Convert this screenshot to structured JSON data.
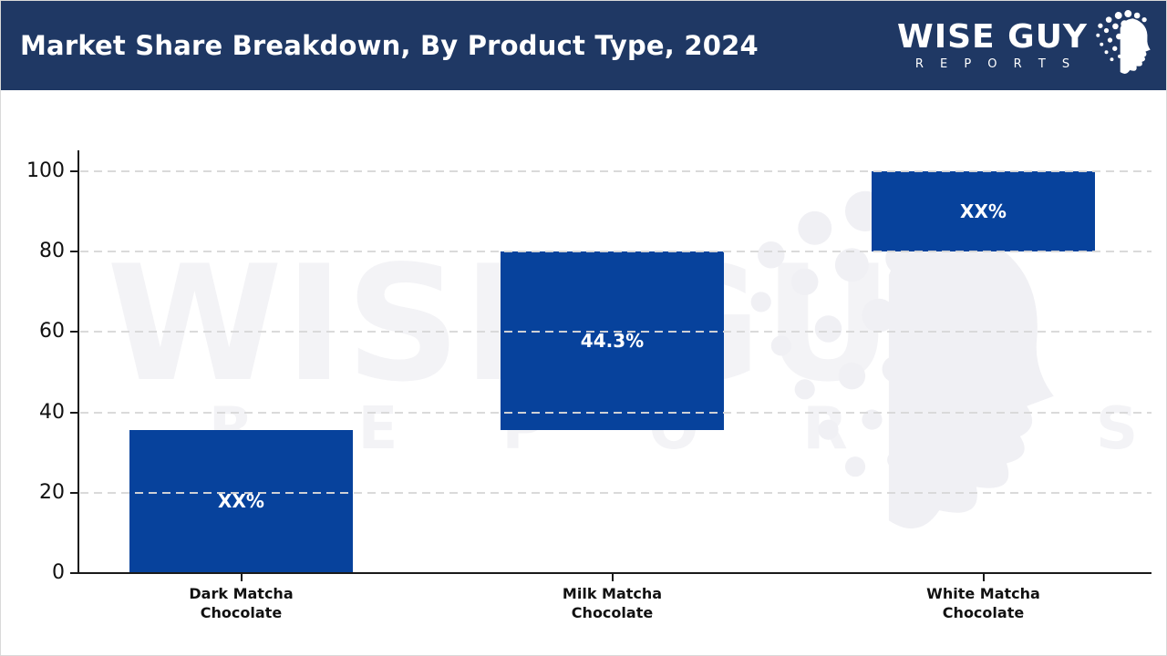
{
  "header": {
    "title": "Market Share Breakdown, By Product Type, 2024",
    "logo": {
      "wordmark": "WISE GUY",
      "subtext": "R E P O R T S"
    }
  },
  "watermark": {
    "wordmark": "WISE GUY",
    "subtext": "R E P O R T S"
  },
  "colors": {
    "header_bg": "#1f3864",
    "bar": "#07429c",
    "grid": "#d8d8d8",
    "axis": "#1a1a1a",
    "bar_label_text": "#ffffff",
    "watermark": "#f3f3f6"
  },
  "chart_data": {
    "type": "bar",
    "variant": "floating-waterfall",
    "title": "Market Share Breakdown, By Product Type, 2024",
    "categories": [
      "Dark Matcha Chocolate",
      "Milk Matcha Chocolate",
      "White Matcha Chocolate"
    ],
    "segments": [
      {
        "category": "Dark Matcha Chocolate",
        "label_lines": [
          "Dark Matcha",
          "Chocolate"
        ],
        "start": 0,
        "end": 35.7,
        "value_label": "XX%"
      },
      {
        "category": "Milk Matcha Chocolate",
        "label_lines": [
          "Milk Matcha",
          "Chocolate"
        ],
        "start": 35.7,
        "end": 80,
        "value": 44.3,
        "value_label": "44.3%"
      },
      {
        "category": "White Matcha Chocolate",
        "label_lines": [
          "White Matcha",
          "Chocolate"
        ],
        "start": 80,
        "end": 100,
        "value_label": "XX%"
      }
    ],
    "xlabel": "",
    "ylabel": "",
    "ylim": [
      0,
      100
    ],
    "yticks": [
      0,
      20,
      40,
      60,
      80,
      100
    ],
    "grid": "horizontal-dashed",
    "legend": null
  }
}
